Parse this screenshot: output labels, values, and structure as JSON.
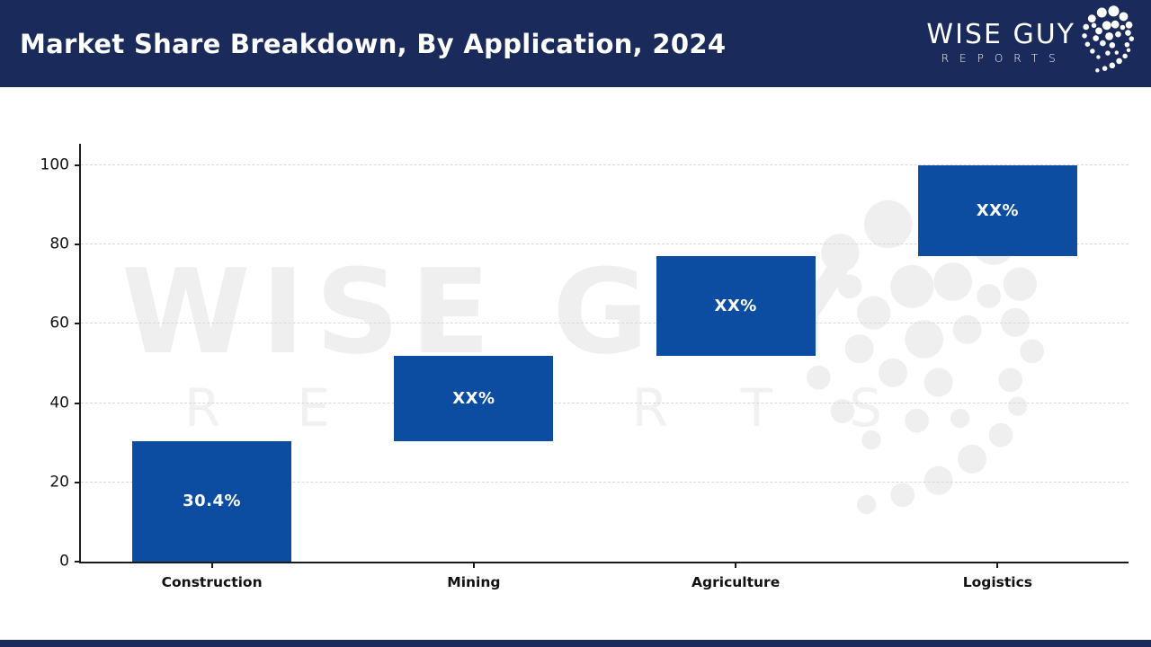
{
  "header": {
    "title": "Market Share Breakdown, By Application, 2024",
    "bg_color": "#1a2a5a",
    "logo": {
      "line1": "WISE GUY",
      "line2": "REPORTS"
    }
  },
  "watermark": {
    "line1": "WISE GUY",
    "line2": "REPORTS"
  },
  "footer": {
    "bg_color": "#1a2a5a"
  },
  "chart_data": {
    "type": "bar",
    "subtype": "floating-waterfall",
    "title": "Market Share Breakdown, By Application, 2024",
    "categories": [
      "Construction",
      "Mining",
      "Agriculture",
      "Logistics"
    ],
    "segments": [
      {
        "category": "Construction",
        "start": 0,
        "end": 30.4,
        "label": "30.4%"
      },
      {
        "category": "Mining",
        "start": 30.4,
        "end": 52,
        "label": "XX%"
      },
      {
        "category": "Agriculture",
        "start": 52,
        "end": 77,
        "label": "XX%"
      },
      {
        "category": "Logistics",
        "start": 77,
        "end": 100,
        "label": "XX%"
      }
    ],
    "xlabel": "",
    "ylabel": "",
    "ylim": [
      0,
      100
    ],
    "yticks": [
      0,
      20,
      40,
      60,
      80,
      100
    ],
    "grid": "horizontal-dashed",
    "legend": "none",
    "bar_color": "#0c4da2",
    "label_color": "#ffffff"
  }
}
